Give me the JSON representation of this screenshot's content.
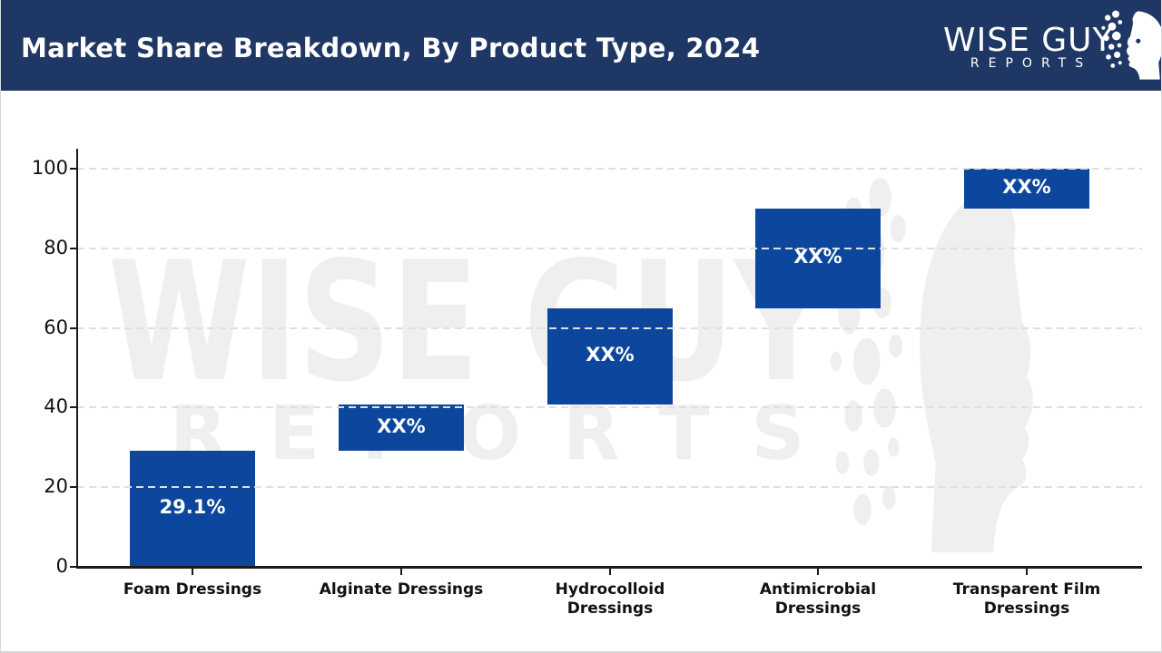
{
  "header": {
    "bg_color": "#1f3764",
    "logo": {
      "line1": "WISE GUY",
      "line2": "REPORTS"
    }
  },
  "watermark": {
    "line1": "WISE GUY",
    "line2": "REPORTS"
  },
  "chart_data": {
    "type": "bar",
    "variant": "waterfall",
    "title": "Market Share Breakdown, By Product Type, 2024",
    "categories": [
      [
        "Foam Dressings"
      ],
      [
        "Alginate Dressings"
      ],
      [
        "Hydrocolloid",
        "Dressings"
      ],
      [
        "Antimicrobial",
        "Dressings"
      ],
      [
        "Transparent Film",
        "Dressings"
      ]
    ],
    "segments": [
      {
        "label": "29.1%",
        "start": 0,
        "end": 29.1
      },
      {
        "label": "XX%",
        "start": 29.1,
        "end": 40.7
      },
      {
        "label": "XX%",
        "start": 40.7,
        "end": 65.0
      },
      {
        "label": "XX%",
        "start": 65.0,
        "end": 90.0
      },
      {
        "label": "XX%",
        "start": 90.0,
        "end": 100.0
      }
    ],
    "yticks": [
      0,
      20,
      40,
      60,
      80,
      100
    ],
    "ylim": [
      0,
      105
    ],
    "grid": true,
    "gridline_color": "#e0e0e0",
    "bar_color": "#0d479d",
    "bar_label_color": "#ffffff",
    "axis_color": "#1a1a1a",
    "legend": null,
    "xlabel": "",
    "ylabel": ""
  }
}
